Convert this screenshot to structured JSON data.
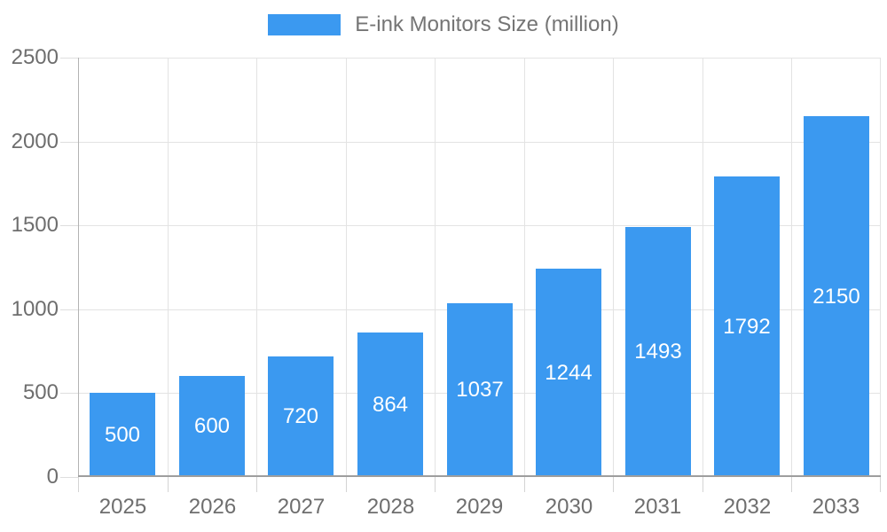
{
  "legend": {
    "label": "E-ink Monitors Size (million)"
  },
  "chart_data": {
    "type": "bar",
    "title": "E-ink Monitors Size (million)",
    "categories": [
      "2025",
      "2026",
      "2027",
      "2028",
      "2029",
      "2030",
      "2031",
      "2032",
      "2033"
    ],
    "values": [
      500,
      600,
      720,
      864,
      1037,
      1244,
      1493,
      1792,
      2150
    ],
    "xlabel": "",
    "ylabel": "",
    "ylim": [
      0,
      2500
    ],
    "yticks": [
      0,
      500,
      1000,
      1500,
      2000,
      2500
    ],
    "grid": true,
    "legend_position": "top",
    "bar_color": "#3B99F0",
    "value_label_color": "#FFFFFF",
    "grid_color": "#E3E3E3",
    "axis_line_color": "#9E9E9E",
    "tick_label_color": "#6E6E6E",
    "legend_text_color": "#757575"
  }
}
